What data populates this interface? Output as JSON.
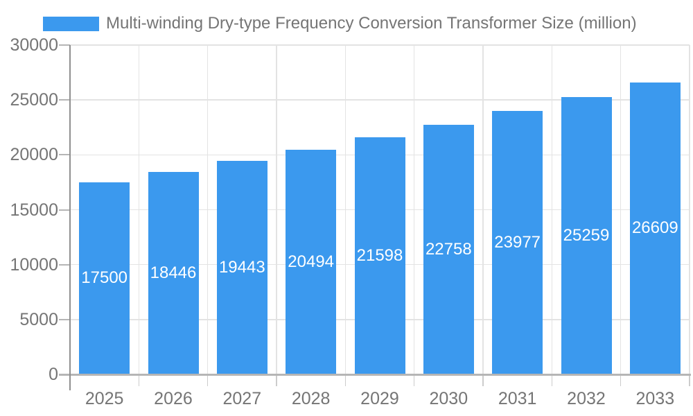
{
  "legend": {
    "swatch_color": "#3B99EE",
    "label": "Multi-winding Dry-type Frequency Conversion Transformer Size (million)"
  },
  "chart_data": {
    "type": "bar",
    "title": "",
    "xlabel": "",
    "ylabel": "",
    "categories": [
      "2025",
      "2026",
      "2027",
      "2028",
      "2029",
      "2030",
      "2031",
      "2032",
      "2033"
    ],
    "series": [
      {
        "name": "Multi-winding Dry-type Frequency Conversion Transformer Size (million)",
        "color": "#3B99EE",
        "values": [
          17500,
          18446,
          19443,
          20494,
          21598,
          22758,
          23977,
          25259,
          26609
        ]
      }
    ],
    "value_labels": [
      "17500",
      "18446",
      "19443",
      "20494",
      "21598",
      "22758",
      "23977",
      "25259",
      "26609"
    ],
    "ylim": [
      0,
      30000
    ],
    "yticks": [
      0,
      5000,
      10000,
      15000,
      20000,
      25000,
      30000
    ],
    "ytick_labels": [
      "0",
      "5000",
      "10000",
      "15000",
      "20000",
      "25000",
      "30000"
    ],
    "grid": "horizontal-and-vertical",
    "legend_position": "top-left",
    "bar_label_position": "inside-center",
    "bar_label_color": "#ffffff"
  },
  "style": {
    "text_color": "#757575",
    "grid_color": "#e3e3e3",
    "y_axis_color": "#8f8f8f",
    "x_axis_color": "#b5b5b5",
    "y_tick_color": "#b5b5b5",
    "x_tick_color": "#cccccc",
    "background": "#ffffff"
  }
}
